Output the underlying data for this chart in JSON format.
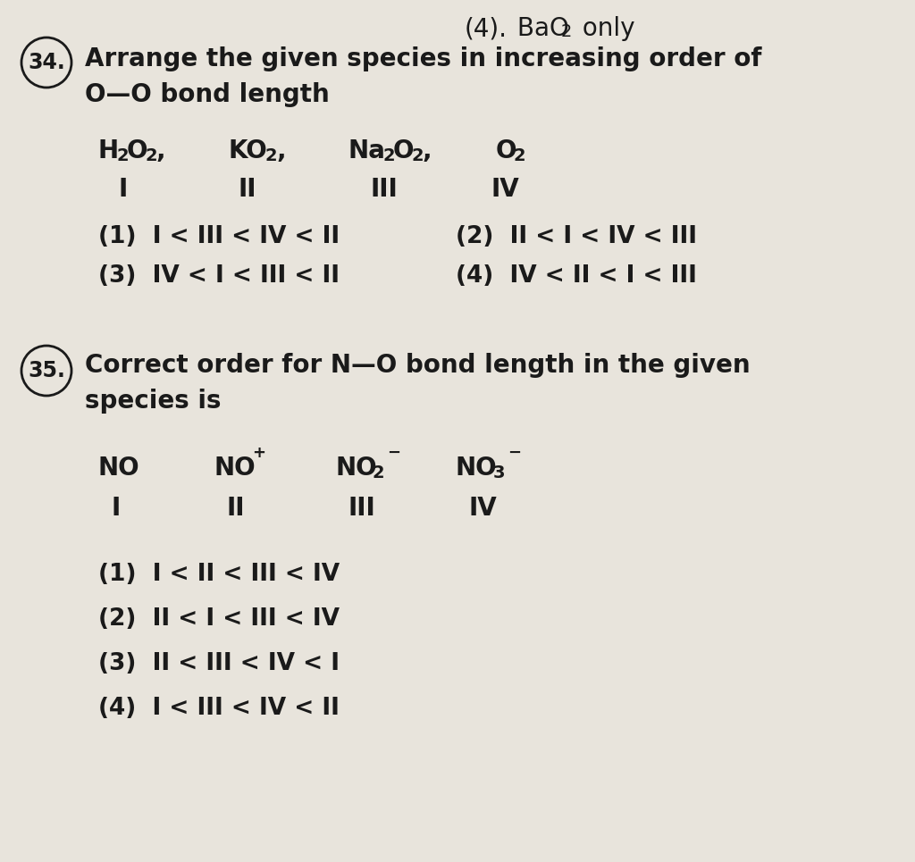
{
  "background_color": "#e8e4dc",
  "text_color": "#1a1a1a",
  "top_text": "(4).  BaO",
  "top_sub": "2",
  "top_rest": " only",
  "q34_label": "34.",
  "q34_line1": "Arrange the given species in increasing order of",
  "q34_line2": "O—O bond length",
  "q35_label": "35.",
  "q35_line1": "Correct order for N—O bond length in the given",
  "q35_line2": "species is",
  "q34_opts_row1": [
    "(1)  I < III < IV < II",
    "(2)  II < I < IV < III"
  ],
  "q34_opts_row2": [
    "(3)  IV < I < III < II",
    "(4)  IV < II < I < III"
  ],
  "q35_opts": [
    "(1)  I < II < III < IV",
    "(2)  II < I < III < IV",
    "(3)  II < III < IV < I",
    "(4)  I < III < IV < II"
  ],
  "fs_title": 20,
  "fs_body": 20,
  "fs_opt": 19,
  "fs_species": 20,
  "fs_sub": 14,
  "fs_super": 13,
  "fs_number": 17
}
